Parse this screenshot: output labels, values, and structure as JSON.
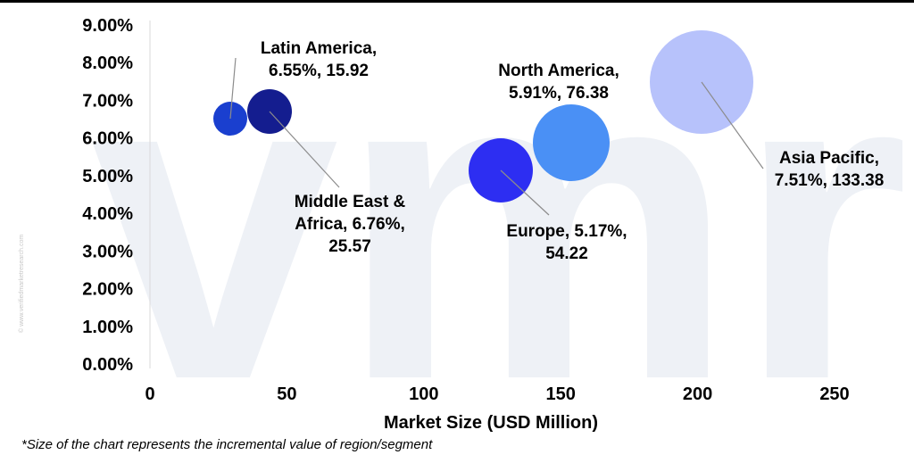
{
  "chart_data": {
    "type": "scatter",
    "subtype": "bubble",
    "xlabel": "Market Size (USD Million)",
    "ylabel": "",
    "xlim": [
      0,
      250
    ],
    "ylim": [
      0,
      0.09
    ],
    "x_ticks": [
      "0",
      "50",
      "100",
      "150",
      "200",
      "250"
    ],
    "y_ticks": [
      "0.00%",
      "1.00%",
      "2.00%",
      "3.00%",
      "4.00%",
      "5.00%",
      "6.00%",
      "7.00%",
      "8.00%",
      "9.00%"
    ],
    "grid": false,
    "points": [
      {
        "name": "Latin America",
        "x": 15.92,
        "y": 0.0655,
        "color": "#1a3fcf",
        "label": [
          "Latin America,",
          "6.55%, 15.92"
        ]
      },
      {
        "name": "Middle East & Africa",
        "x": 25.57,
        "y": 0.0676,
        "color": "#141d8f",
        "label": [
          "Middle East &",
          "Africa, 6.76%,",
          "25.57"
        ]
      },
      {
        "name": "Europe",
        "x": 54.22,
        "y": 0.0517,
        "color": "#2d2ef2",
        "label": [
          "Europe,  5.17%,",
          "54.22"
        ]
      },
      {
        "name": "North America",
        "x": 76.38,
        "y": 0.0591,
        "color": "#4a90f5",
        "label": [
          "North America,",
          "5.91%, 76.38"
        ]
      },
      {
        "name": "Asia Pacific",
        "x": 133.38,
        "y": 0.0751,
        "color": "#b7c2fb",
        "label": [
          "Asia Pacific,",
          "7.51%, 133.38"
        ]
      }
    ]
  },
  "watermark": {
    "logo_text": "vmr",
    "side_text": "© www.verifiedmarketresearch.com"
  },
  "footnote": "*Size of the chart represents the incremental value of region/segment"
}
